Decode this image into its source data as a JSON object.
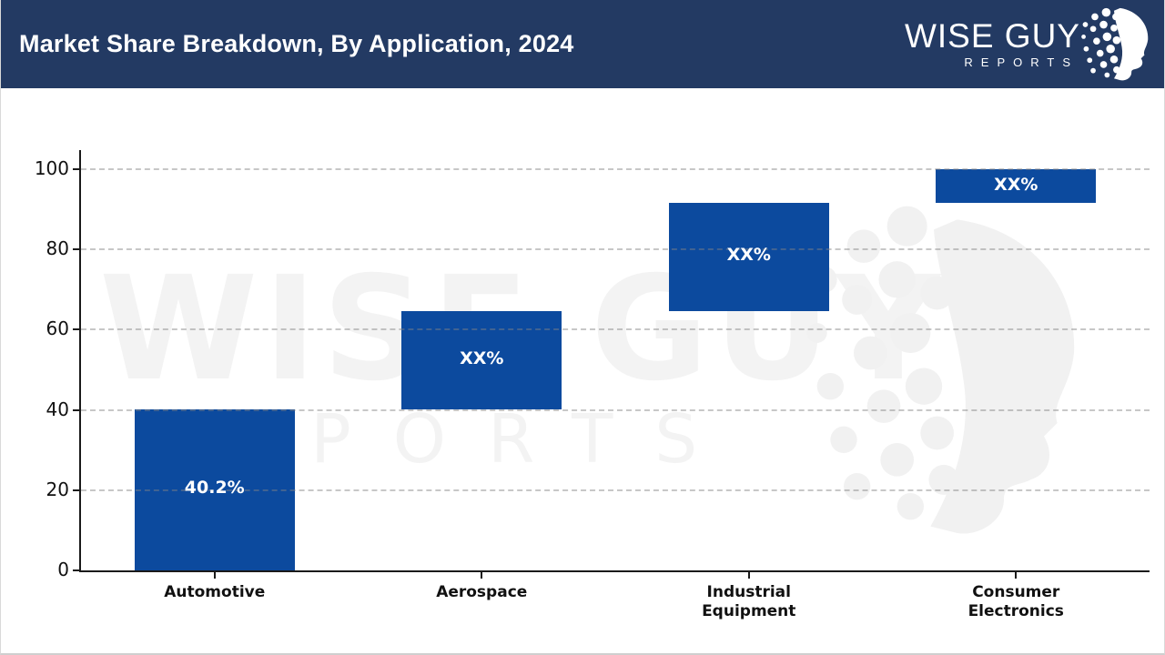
{
  "header": {
    "title": "Market Share Breakdown, By Application, 2024",
    "logo": {
      "line1": "WISE GUY",
      "line2": "REPORTS"
    }
  },
  "watermark": {
    "line1": "WISE GUY",
    "line2": "REPORTS"
  },
  "chart_data": {
    "type": "bar",
    "subtype": "waterfall-breakdown",
    "title": "Market Share Breakdown, By Application, 2024",
    "categories": [
      "Automotive",
      "Aerospace",
      "Industrial\nEquipment",
      "Consumer\nElectronics"
    ],
    "segments": [
      {
        "category": "Automotive",
        "start": 0,
        "end": 40.2,
        "value": 40.2,
        "label": "40.2%"
      },
      {
        "category": "Aerospace",
        "start": 40.2,
        "end": 64.7,
        "value": 24.5,
        "label": "XX%"
      },
      {
        "category": "Industrial Equipment",
        "start": 64.7,
        "end": 91.6,
        "value": 26.9,
        "label": "XX%"
      },
      {
        "category": "Consumer Electronics",
        "start": 91.6,
        "end": 100,
        "value": 8.4,
        "label": "XX%"
      }
    ],
    "yticks": [
      0,
      20,
      40,
      60,
      80,
      100
    ],
    "ylim": [
      0,
      105
    ],
    "xlabel": "",
    "ylabel": "",
    "grid": "dashed-horizontal",
    "legend": "none",
    "colors": {
      "bar": "#0c4a9e",
      "header_bg": "#233a63",
      "grid": "#d9d9d9",
      "axis": "#1a1a1a",
      "bar_label_text": "#ffffff",
      "watermark": "#f3f3f3"
    }
  }
}
